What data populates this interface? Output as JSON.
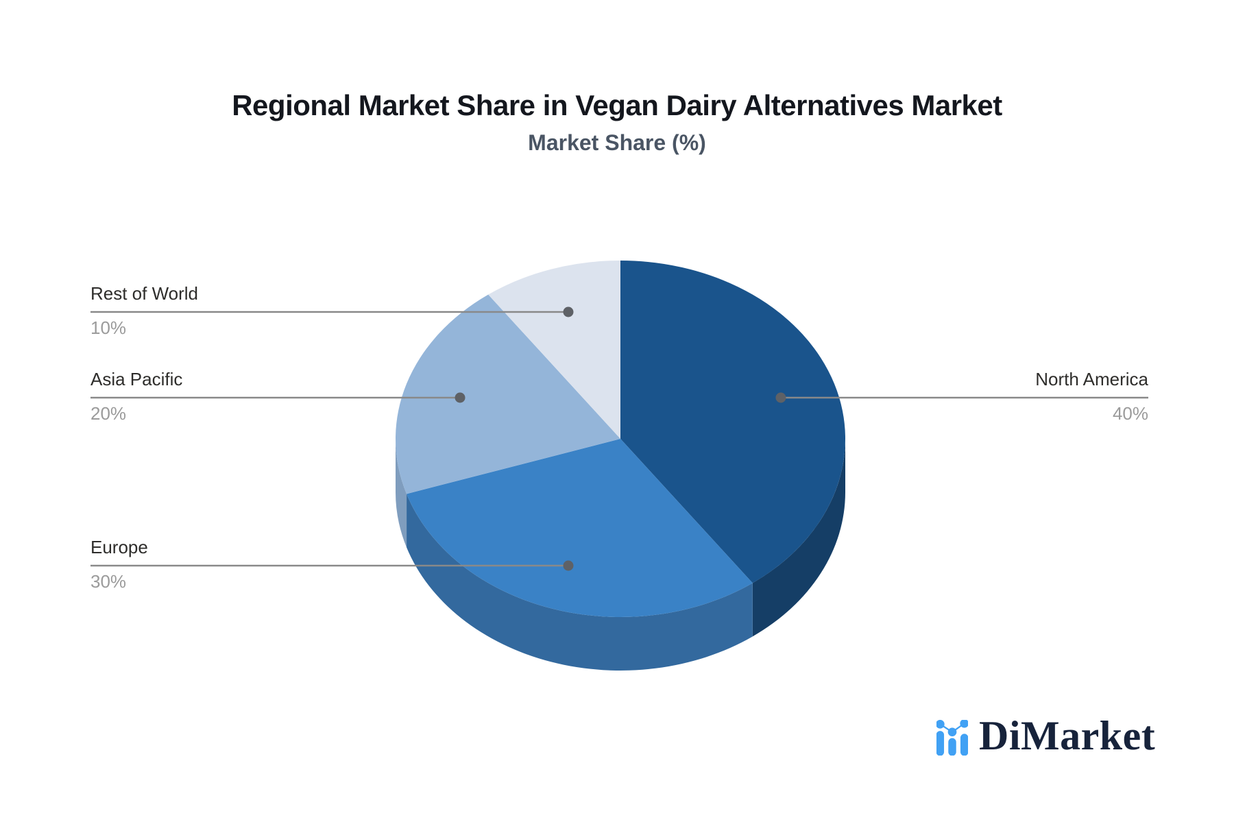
{
  "header": {
    "title": "Regional Market Share in Vegan Dairy Alternatives Market",
    "subtitle": "Market Share (%)"
  },
  "brand": {
    "name": "DiMarket",
    "icon": "bar-line-chart-logo-icon",
    "icon_color": "#41a1f4",
    "text_color": "#17233b"
  },
  "chart_data": {
    "type": "pie",
    "title": "Regional Market Share in Vegan Dairy Alternatives Market",
    "subtitle": "Market Share (%)",
    "unit": "%",
    "effect": "3d",
    "start_angle_deg": 0,
    "direction": "clockwise",
    "legend_position": "callout-labels",
    "slices": [
      {
        "label": "North America",
        "value": 40,
        "display": "40%",
        "color": "#1a548c",
        "side_color": "#153e66",
        "label_side": "right"
      },
      {
        "label": "Europe",
        "value": 30,
        "display": "30%",
        "color": "#3a82c6",
        "side_color": "#33699e",
        "label_side": "left"
      },
      {
        "label": "Asia Pacific",
        "value": 20,
        "display": "20%",
        "color": "#94b5d9",
        "side_color": "#7f9dbe",
        "label_side": "left"
      },
      {
        "label": "Rest of World",
        "value": 10,
        "display": "10%",
        "color": "#dce3ee",
        "side_color": "#c3ccda",
        "label_side": "left"
      }
    ],
    "callout": {
      "line_color": "#898989",
      "dot_color": "#5e6166",
      "label_color": "#2e2d2b",
      "value_color": "#9b9b9b"
    }
  }
}
